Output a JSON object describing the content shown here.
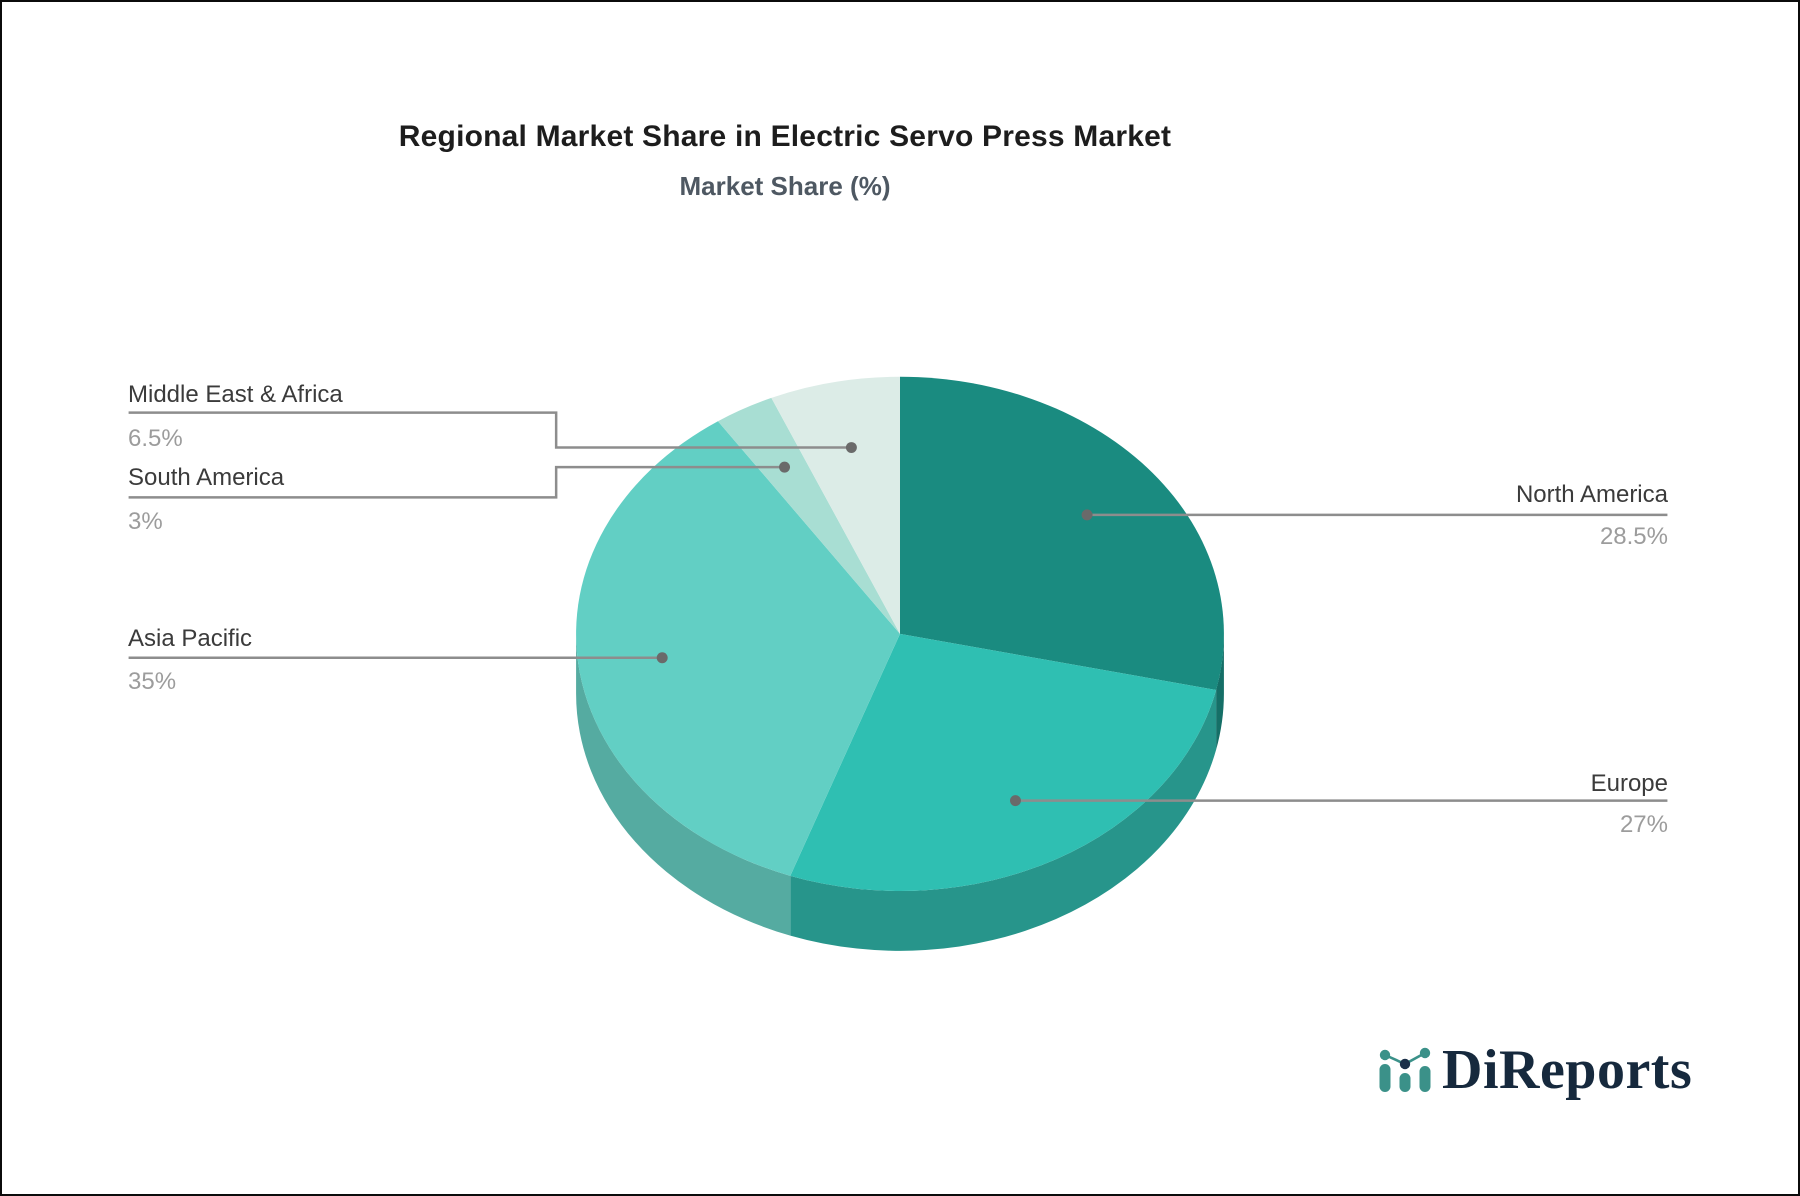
{
  "title": "Regional Market Share in Electric Servo Press Market",
  "subtitle": "Market Share (%)",
  "watermark": {
    "brand": "DiReports",
    "icon": "bar-chart-logo-icon",
    "text_color": "#16293d",
    "icon_bar_color": "#3b9189",
    "icon_dot_dark_color": "#1b3049"
  },
  "chart_data": {
    "type": "pie",
    "style": "3d",
    "title": "Regional Market Share in Electric Servo Press Market",
    "subtitle": "Market Share (%)",
    "unit": "%",
    "direction": "clockwise",
    "start_angle_deg": 0,
    "legend_position": "none",
    "slices": [
      {
        "label": "North America",
        "value": 28.5,
        "display": "28.5%",
        "color": "#1a8b80",
        "side_color": "#156f67",
        "label_side": "right"
      },
      {
        "label": "Europe",
        "value": 27,
        "display": "27%",
        "color": "#2fbfb2",
        "side_color": "#27958b",
        "label_side": "right"
      },
      {
        "label": "Asia Pacific",
        "value": 35,
        "display": "35%",
        "color": "#62cfc4",
        "side_color": "#55aba1",
        "label_side": "left"
      },
      {
        "label": "South America",
        "value": 3,
        "display": "3%",
        "color": "#a8ded3",
        "side_color": "#8fbdb4",
        "label_side": "left"
      },
      {
        "label": "Middle East & Africa",
        "value": 6.5,
        "display": "6.5%",
        "color": "#dcece7",
        "side_color": "#bcd0cb",
        "label_side": "left"
      }
    ],
    "leader_line_color": "#8d8d8d",
    "leader_dot_color": "#6a6a6a",
    "category_label_color": "#3b3b3b",
    "value_label_color": "#9c9c9c"
  }
}
